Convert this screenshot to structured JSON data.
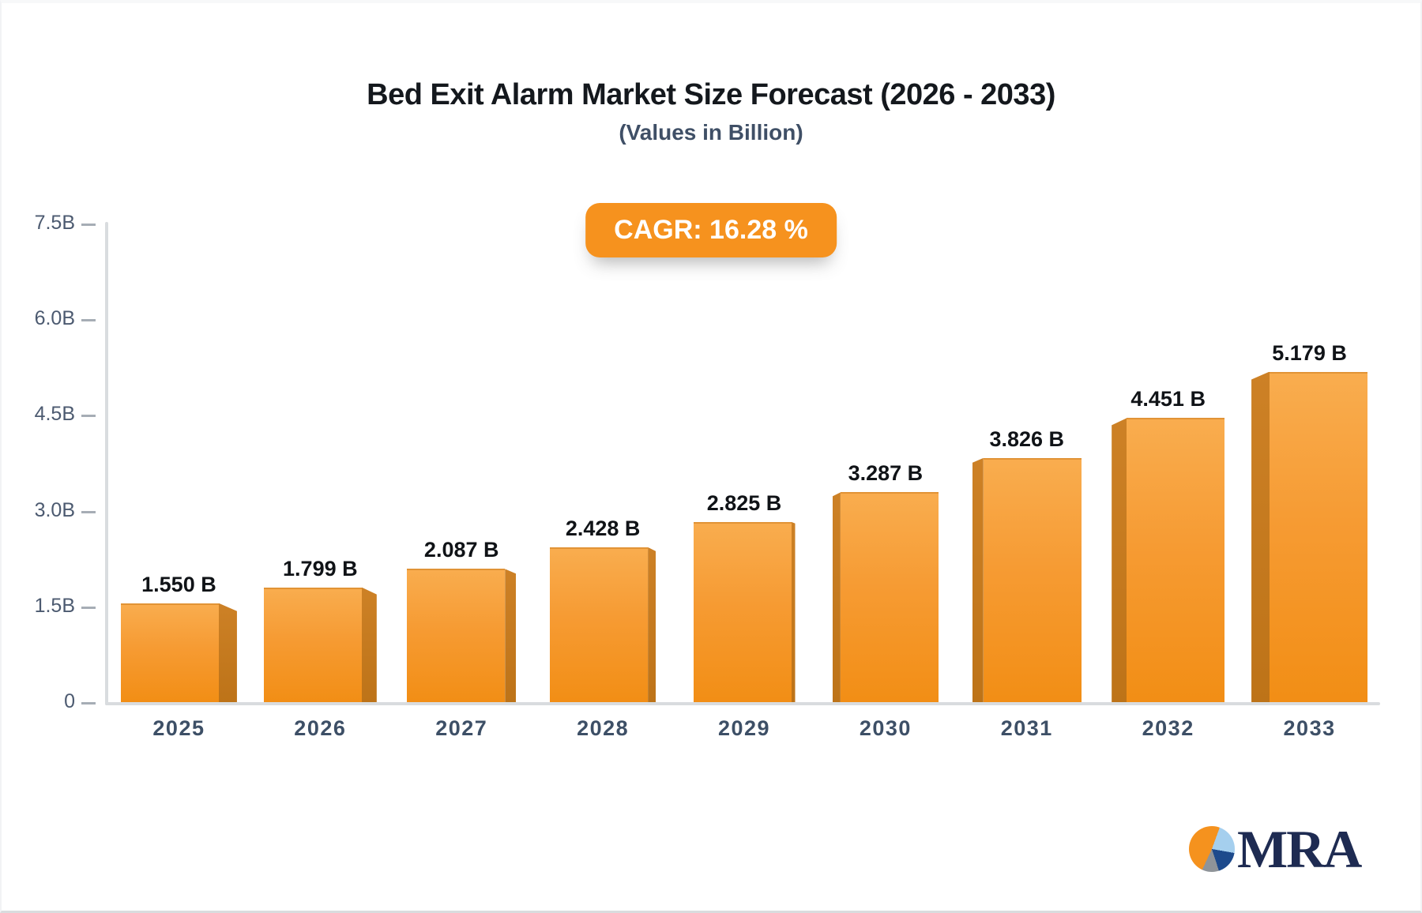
{
  "title": "Bed Exit Alarm Market Size Forecast (2026 - 2033)",
  "subtitle": "(Values in Billion)",
  "badge": {
    "label": "CAGR: 16.28 %"
  },
  "logo": {
    "text": "MRA"
  },
  "colors": {
    "bar_top": "#f9ad4f",
    "bar_bottom": "#f28e15",
    "bar_side": "#c47a1d",
    "badge_bg": "#f6921e",
    "axis": "#d9dcdf",
    "y_tick_label": "#4c5a70",
    "year_label": "#3d4f66",
    "title_text": "#14181d",
    "subtitle_text": "#3f4f66",
    "logo_navy": "#1e2b52",
    "logo_light_blue": "#a5cfee",
    "logo_blue": "#1d4a8c",
    "logo_gray": "#8f9499",
    "logo_orange": "#f5921e"
  },
  "chart_data": {
    "type": "bar",
    "title": "Bed Exit Alarm Market Size Forecast (2026 - 2033)",
    "subtitle": "(Values in Billion)",
    "categories": [
      "2025",
      "2026",
      "2027",
      "2028",
      "2029",
      "2030",
      "2031",
      "2032",
      "2033"
    ],
    "values": [
      1.55,
      1.799,
      2.087,
      2.428,
      2.825,
      3.287,
      3.826,
      4.451,
      5.179
    ],
    "value_labels": [
      "1.550 B",
      "1.799 B",
      "2.087 B",
      "2.428 B",
      "2.825 B",
      "3.287 B",
      "3.826 B",
      "4.451 B",
      "5.179 B"
    ],
    "unit": "Billion USD",
    "xlabel": "",
    "ylabel": "",
    "ylim": [
      0,
      7.5
    ],
    "y_ticks": [
      {
        "v": 0,
        "label": "0"
      },
      {
        "v": 1.5,
        "label": "1.5B"
      },
      {
        "v": 3.0,
        "label": "3.0B"
      },
      {
        "v": 4.5,
        "label": "4.5B"
      },
      {
        "v": 6.0,
        "label": "6.0B"
      },
      {
        "v": 7.5,
        "label": "7.5B"
      }
    ],
    "grid": false,
    "legend": "none",
    "cagr": "16.28 %"
  }
}
